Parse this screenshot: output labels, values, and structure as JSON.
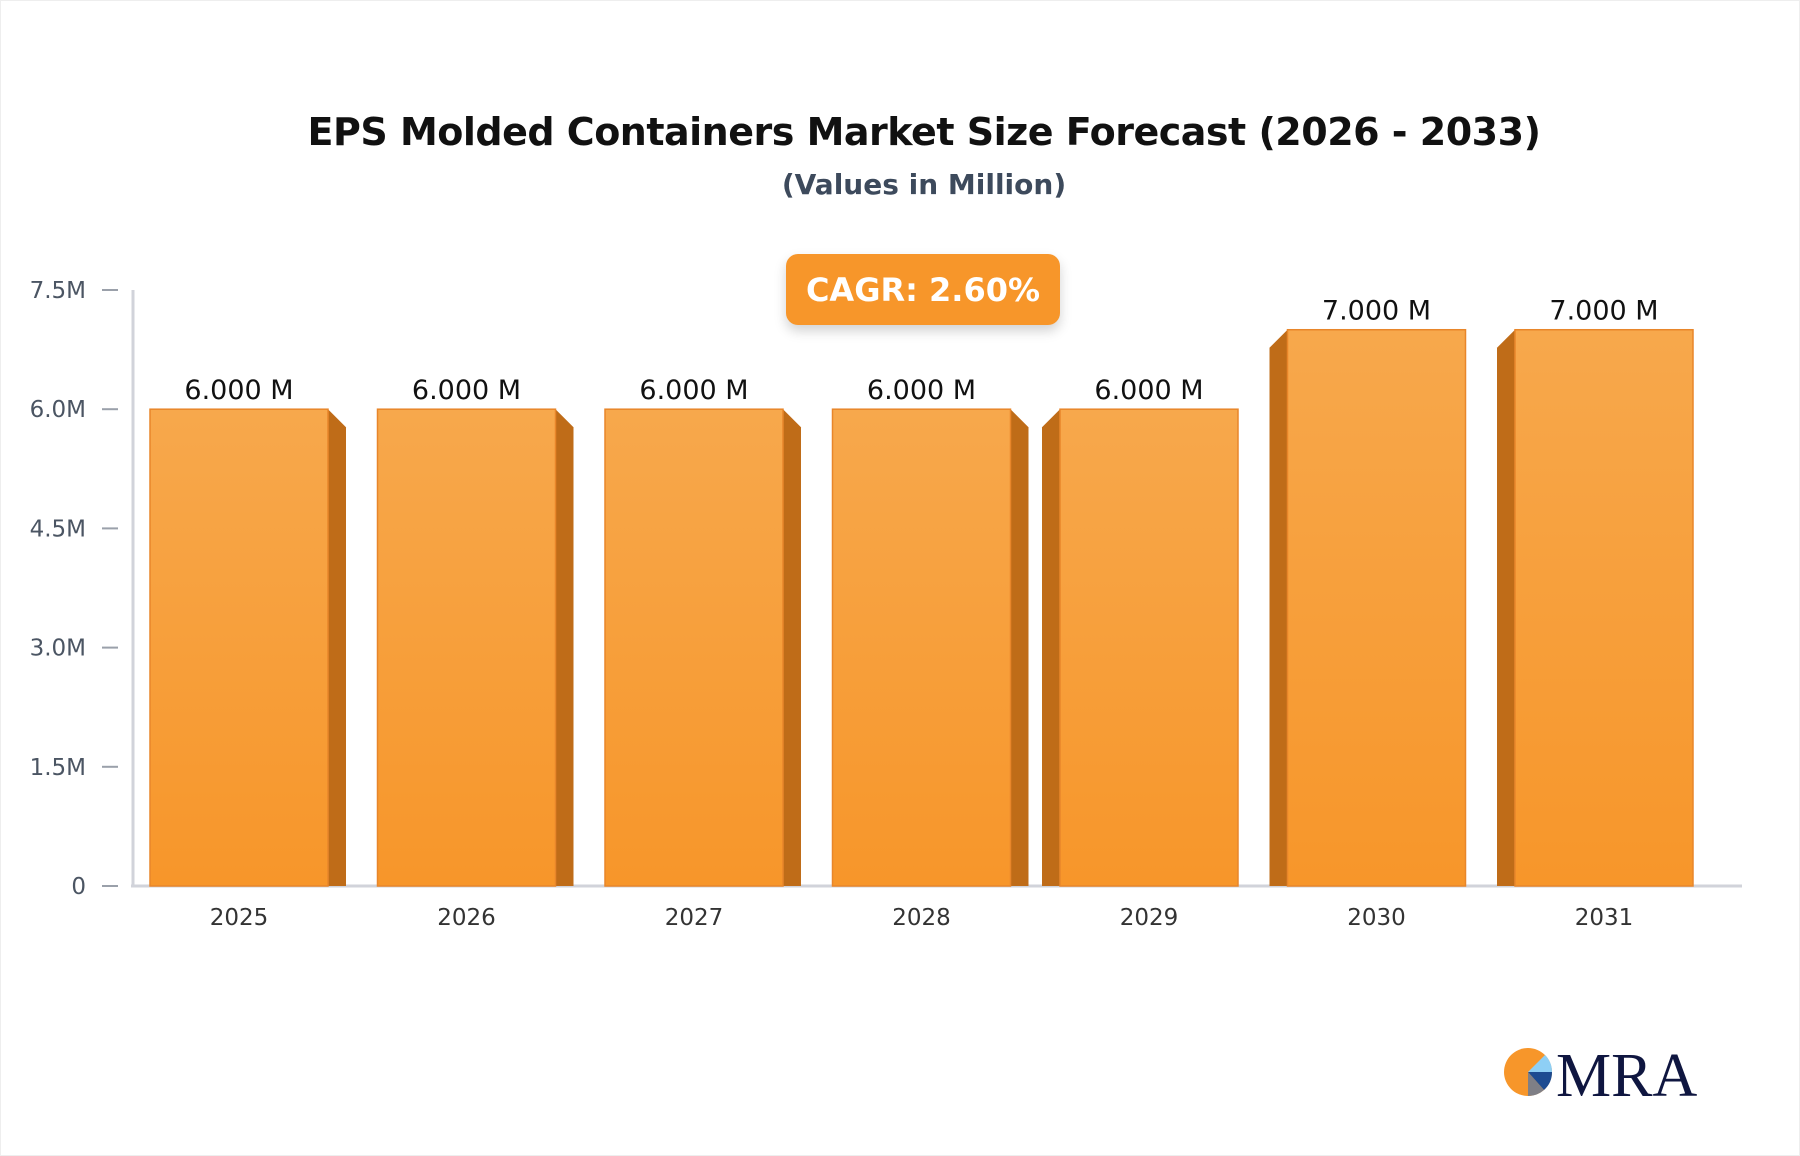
{
  "chart_data": {
    "type": "bar",
    "title": "EPS Molded Containers Market Size Forecast (2026 - 2033)",
    "subtitle": "(Values in Million)",
    "annotation": "CAGR: 2.60%",
    "categories": [
      "2025",
      "2026",
      "2027",
      "2028",
      "2029",
      "2030",
      "2031"
    ],
    "values": [
      6.0,
      6.0,
      6.0,
      6.0,
      6.0,
      7.0,
      7.0
    ],
    "data_labels": [
      "6.000 M",
      "6.000 M",
      "6.000 M",
      "6.000 M",
      "6.000 M",
      "7.000 M",
      "7.000 M"
    ],
    "yticks": [
      "0",
      "1.5M",
      "3.0M",
      "4.5M",
      "6.0M",
      "7.5M"
    ],
    "ytick_values": [
      0,
      1.5,
      3.0,
      4.5,
      6.0,
      7.5
    ],
    "ylim": [
      0,
      7.5
    ],
    "xlabel": "",
    "ylabel": "",
    "grid": false,
    "colors": {
      "bar": "#f7962a",
      "bar_top": "#f7a84c",
      "bar_side": "#bf6c18",
      "axis": "#d1d3da",
      "cagr_bg": "#f7962a"
    }
  },
  "logo": {
    "text": "MRA"
  }
}
